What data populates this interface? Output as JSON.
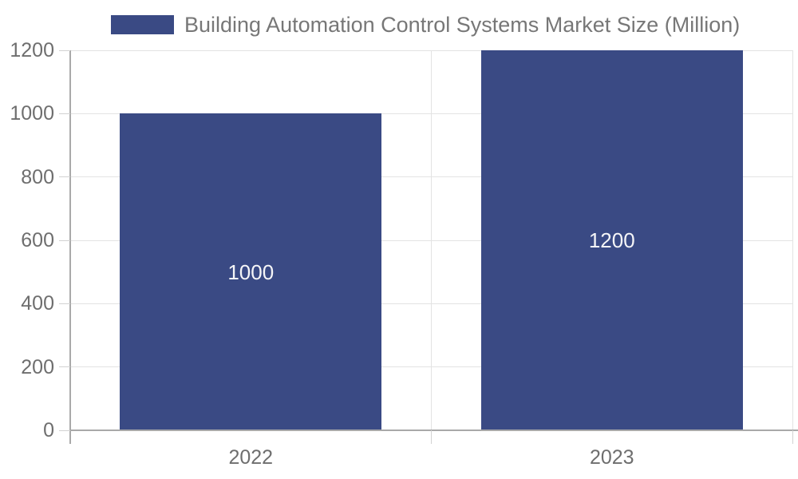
{
  "legend": {
    "label": "Building Automation Control Systems Market Size (Million)"
  },
  "colors": {
    "bar": "#3A4A84",
    "bar_label_text": "#F5F5F7",
    "grid": "#E3E3E3",
    "axis": "#A9A9A9",
    "tick": "#D2D2D2",
    "tick_text": "#6E6E6E",
    "title_text": "#777777",
    "background": "#FFFFFF"
  },
  "chart_data": {
    "type": "bar",
    "title": "Building Automation Control Systems Market Size (Million)",
    "categories": [
      "2022",
      "2023"
    ],
    "series": [
      {
        "name": "Building Automation Control Systems Market Size (Million)",
        "values": [
          1000,
          1200
        ]
      }
    ],
    "data_labels": [
      "1000",
      "1200"
    ],
    "xlabel": "",
    "ylabel": "",
    "ylim": [
      0,
      1200
    ],
    "yticks": [
      0,
      200,
      400,
      600,
      800,
      1000,
      1200
    ],
    "grid": true,
    "legend_position": "top"
  }
}
